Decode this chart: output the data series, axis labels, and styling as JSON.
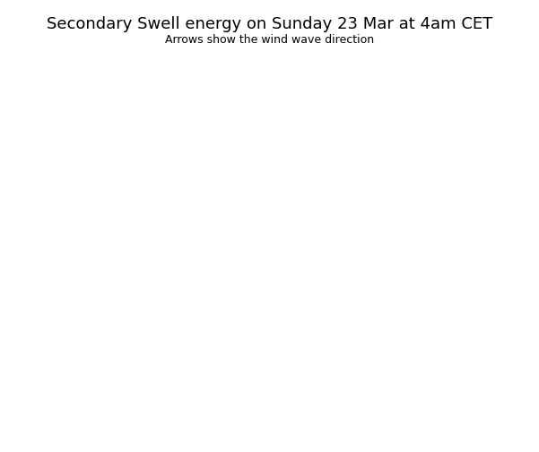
{
  "title": "Secondary Swell energy on Sunday 23 Mar at 4am CET",
  "subtitle": "Arrows show the wind wave direction",
  "title_fontsize": 13,
  "subtitle_fontsize": 9,
  "background_color": "#000000",
  "title_area_color": "#ffffff",
  "fig_width": 6.01,
  "fig_height": 5.04,
  "dpi": 100
}
